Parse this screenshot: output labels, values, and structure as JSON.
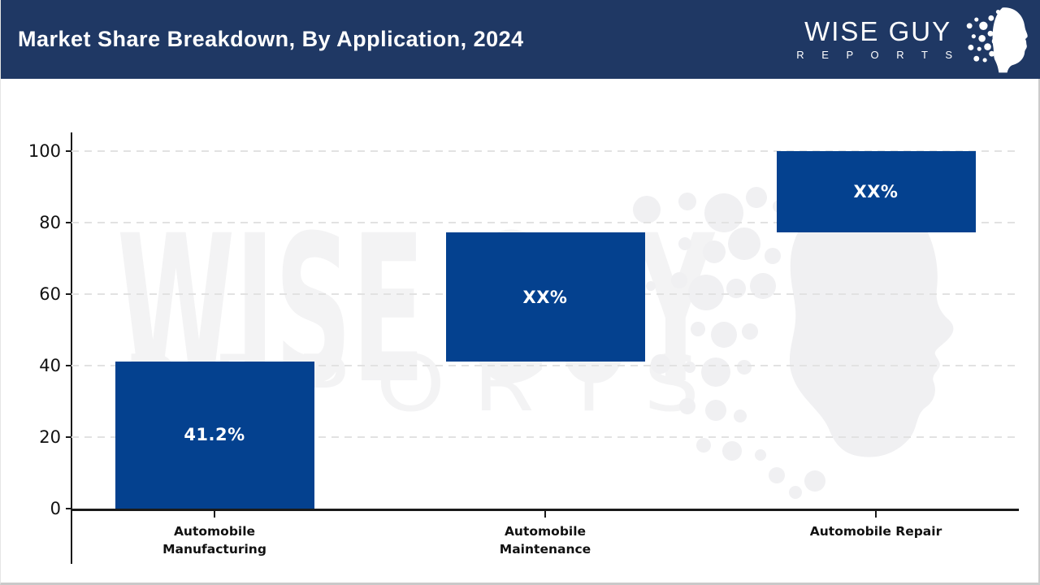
{
  "header": {
    "title": "Market Share Breakdown, By Application, 2024",
    "logo": {
      "line1": "WISE GUY",
      "line2": "R E P O R T S"
    }
  },
  "watermark": {
    "line1": "WISE GUY",
    "line2": "R E P O R T S"
  },
  "chart_data": {
    "type": "bar",
    "subtype": "floating-waterfall-bars",
    "title": "Market Share Breakdown, By Application, 2024",
    "categories": [
      "Automobile\nManufacturing",
      "Automobile\nMaintenance",
      "Automobile Repair"
    ],
    "segments": [
      {
        "category": "Automobile Manufacturing",
        "from": 0,
        "to": 41.2,
        "label": "41.2%"
      },
      {
        "category": "Automobile Maintenance",
        "from": 41.2,
        "to": 77.2,
        "label": "XX%"
      },
      {
        "category": "Automobile Repair",
        "from": 77.2,
        "to": 100,
        "label": "XX%"
      }
    ],
    "xlabel": "",
    "ylabel": "",
    "ylim": [
      0,
      100
    ],
    "yticks": [
      0,
      20,
      40,
      60,
      80,
      100
    ],
    "grid": "horizontal-dashed",
    "legend": "none",
    "bar_color": "#04418f",
    "bar_label_color": "#ffffff",
    "header_color": "#1f3864",
    "watermark_color": "#f3f3f4"
  }
}
